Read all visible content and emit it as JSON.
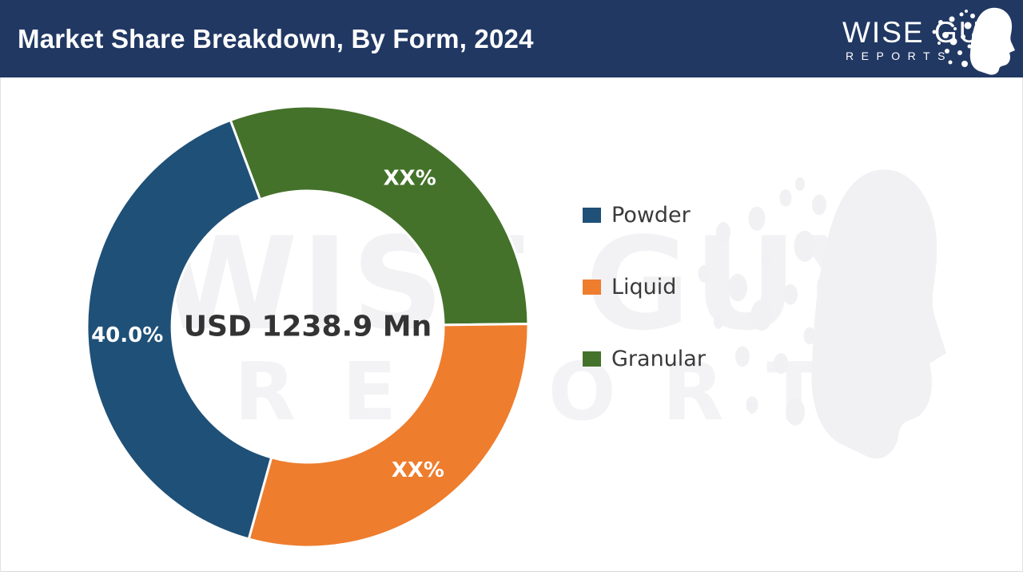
{
  "header": {
    "title": "Market Share Breakdown, By Form, 2024",
    "bg_color": "#213863",
    "logo": {
      "line1": "WISE GUY",
      "line2": "REPORTS"
    }
  },
  "watermark": {
    "line1": "WISE GUY",
    "line2": "REPORTS"
  },
  "chart_data": {
    "type": "pie",
    "subtype": "donut",
    "title": "Market Share Breakdown, By Form, 2024",
    "center_label": "USD 1238.9 Mn",
    "unit": "percent of market share",
    "legend_position": "right",
    "segments": [
      {
        "name": "Powder",
        "display_label": "40.0%",
        "value_pct": 40.0,
        "color": "#1f5077"
      },
      {
        "name": "Liquid",
        "display_label": "XX%",
        "value_pct": 29.5,
        "color": "#ee7d2e"
      },
      {
        "name": "Granular",
        "display_label": "XX%",
        "value_pct": 30.5,
        "color": "#44722a"
      }
    ],
    "render": {
      "center": [
        384,
        312
      ],
      "outer_radius": 276,
      "inner_radius": 170,
      "label_radius": 226,
      "start_angle_deg": 110.5,
      "direction": "clockwise",
      "draw_order": [
        2,
        1,
        0
      ],
      "separator_color": "#ffffff",
      "separator_width": 3
    }
  }
}
